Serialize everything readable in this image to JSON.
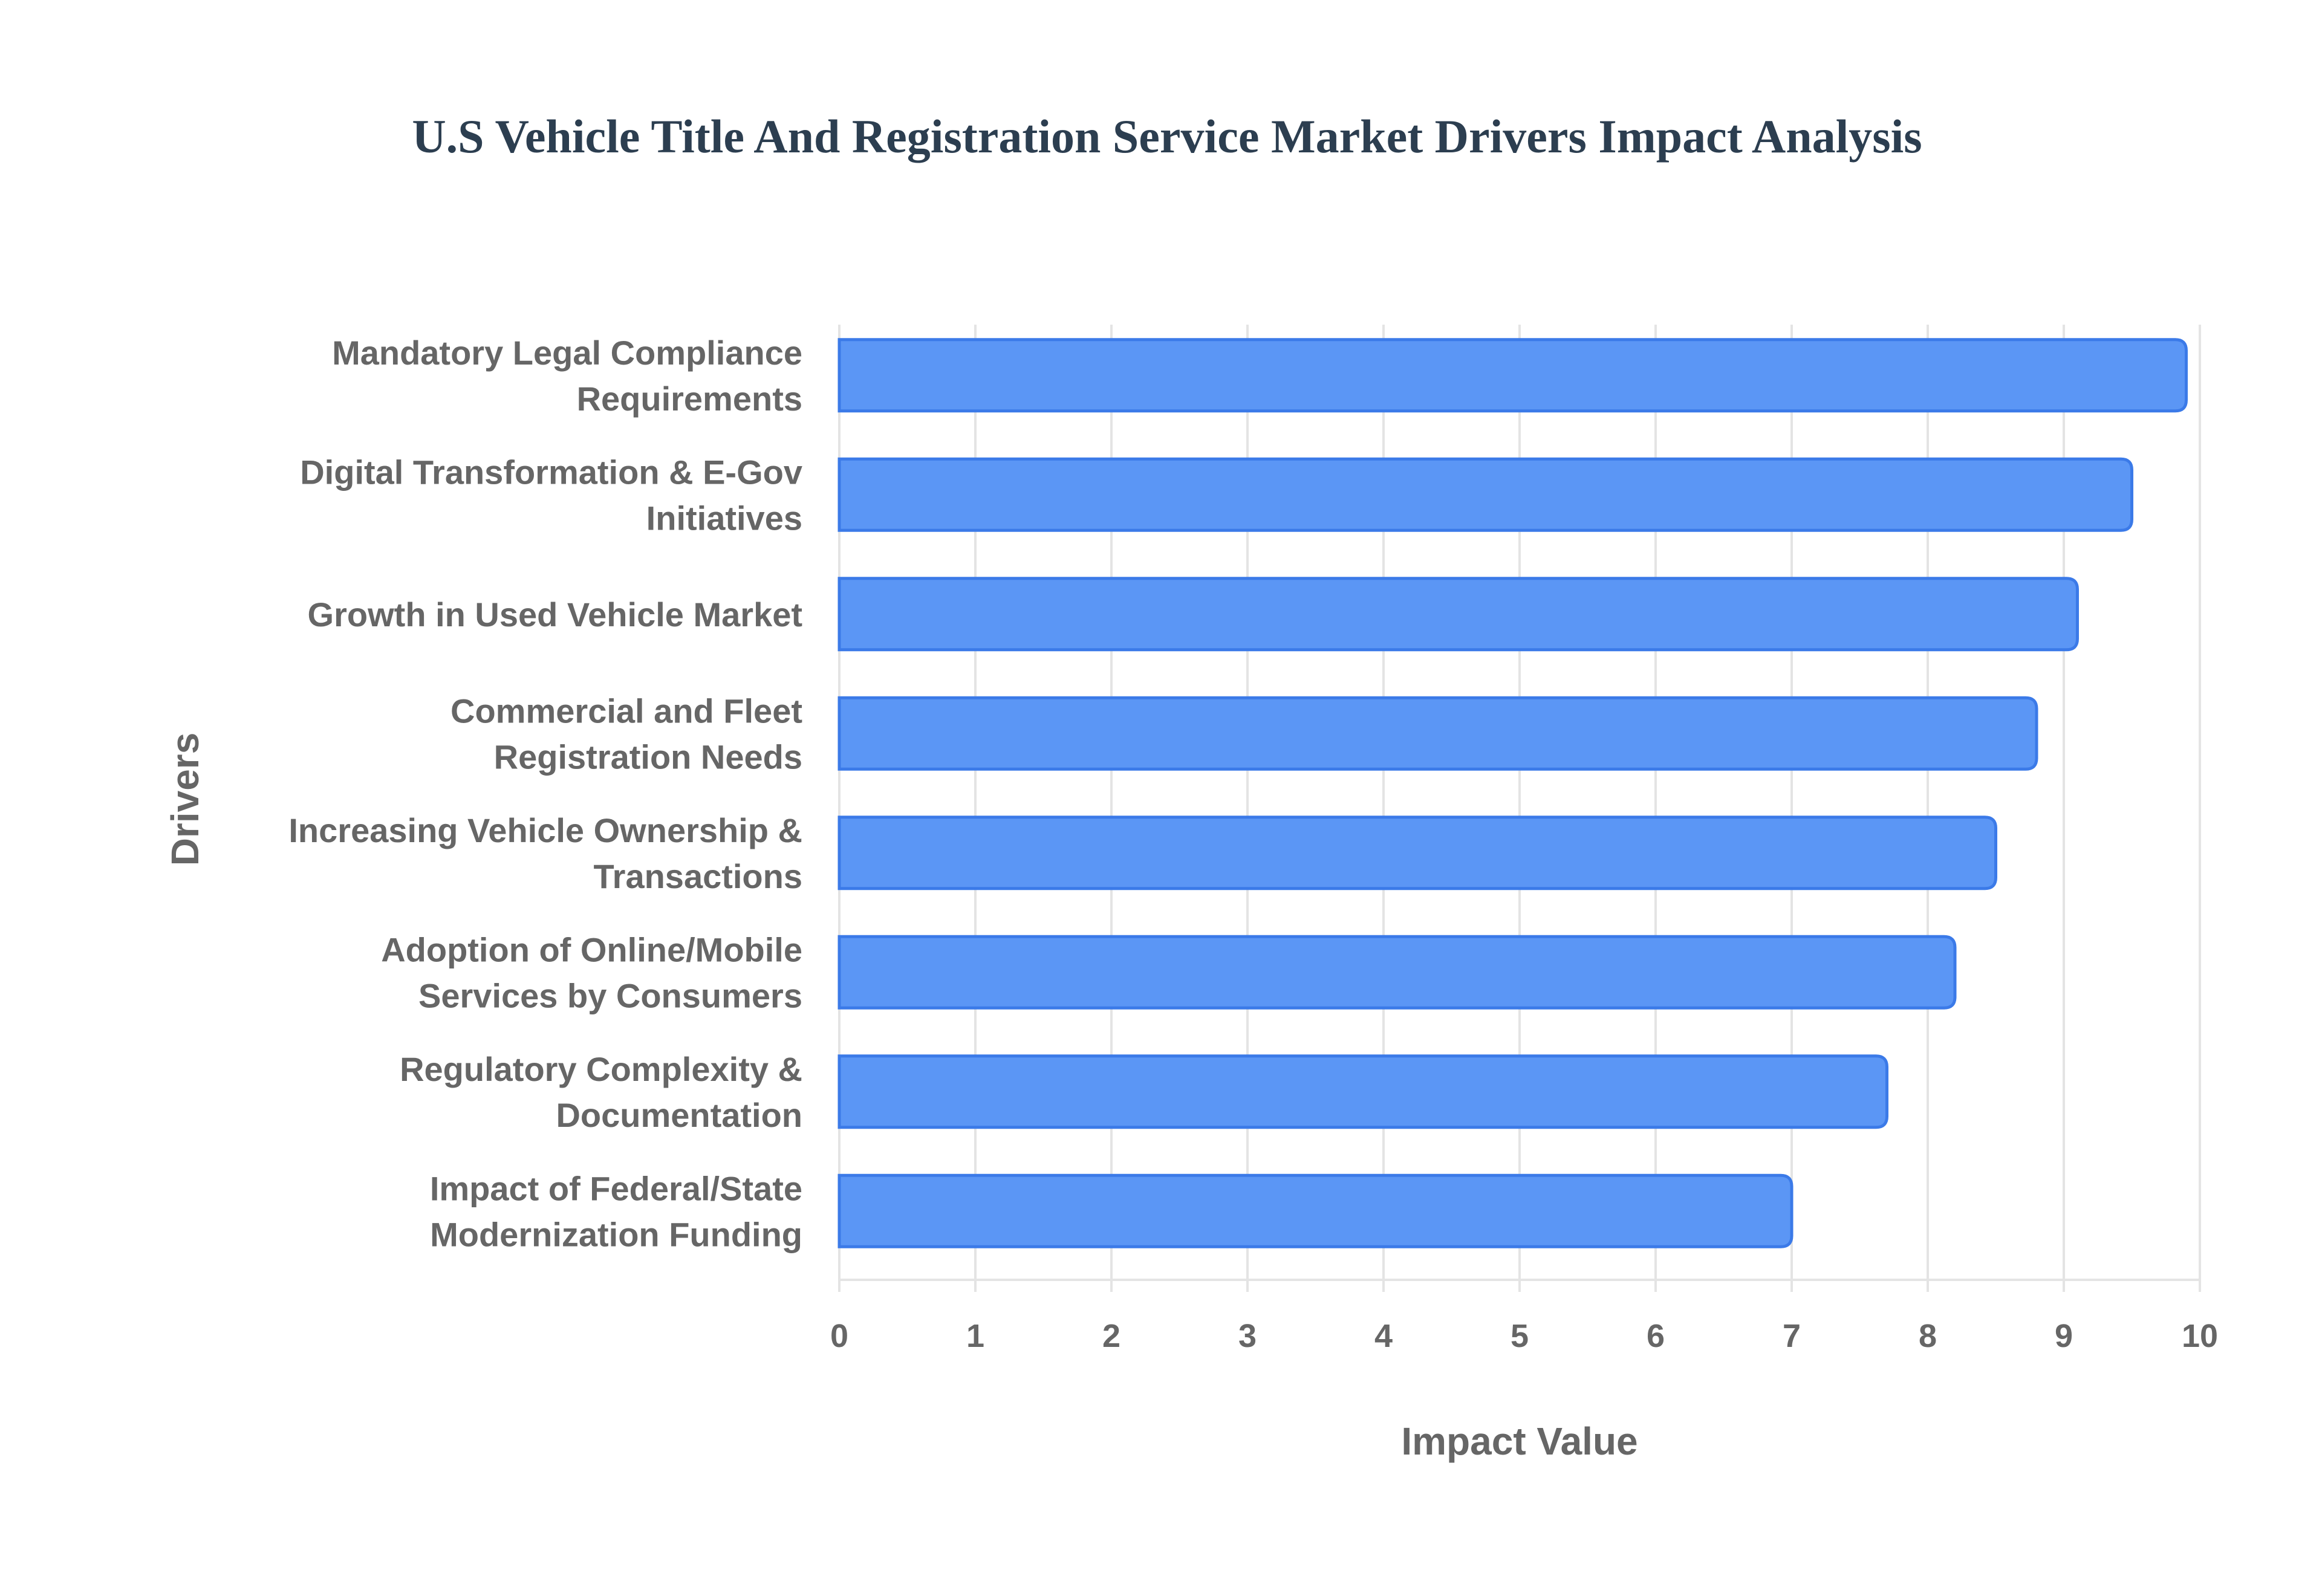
{
  "chart_data": {
    "type": "bar",
    "orientation": "horizontal",
    "title": "U.S Vehicle Title And Registration Service Market Drivers Impact Analysis",
    "xlabel": "Impact Value",
    "ylabel": "Drivers",
    "xlim": [
      0,
      10
    ],
    "xticks": [
      "0",
      "1",
      "2",
      "3",
      "4",
      "5",
      "6",
      "7",
      "8",
      "9",
      "10"
    ],
    "grid": true,
    "bar_color": "#5b96f5",
    "bar_border_color": "#3b7ae8",
    "categories": [
      [
        "Mandatory Legal Compliance",
        "Requirements"
      ],
      [
        "Digital Transformation & E-Gov",
        "Initiatives"
      ],
      [
        "Growth in Used Vehicle Market"
      ],
      [
        "Commercial and Fleet",
        "Registration Needs"
      ],
      [
        "Increasing Vehicle Ownership &",
        "Transactions"
      ],
      [
        "Adoption of Online/Mobile",
        "Services by Consumers"
      ],
      [
        "Regulatory Complexity &",
        "Documentation"
      ],
      [
        "Impact of Federal/State",
        "Modernization Funding"
      ]
    ],
    "values": [
      9.9,
      9.5,
      9.1,
      8.8,
      8.5,
      8.2,
      7.7,
      7.0
    ]
  }
}
